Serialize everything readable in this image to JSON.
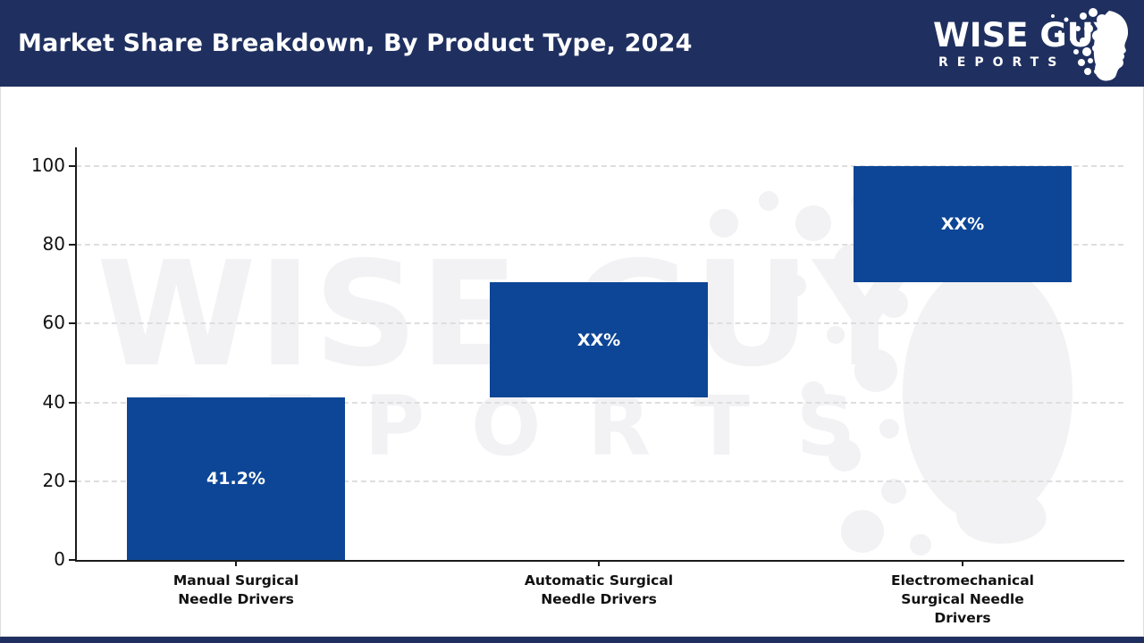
{
  "header": {
    "title": "Market Share Breakdown, By Product Type, 2024",
    "bg_color": "#1f3060",
    "logo": {
      "line1": "WISE GUY",
      "line2": "REPORTS"
    }
  },
  "watermark": {
    "line1": "WISE GUY",
    "line2": "REPORTS"
  },
  "chart_data": {
    "type": "bar",
    "subtype": "stepped-stacked-waterfall",
    "title": "Market Share Breakdown, By Product Type, 2024",
    "categories": [
      [
        "Manual Surgical",
        "Needle Drivers"
      ],
      [
        "Automatic Surgical",
        "Needle Drivers"
      ],
      [
        "Electromechanical",
        "Surgical Needle",
        "Drivers"
      ]
    ],
    "segments": [
      {
        "category": "Manual Surgical Needle Drivers",
        "start": 0,
        "end": 41.2,
        "label": "41.2%"
      },
      {
        "category": "Automatic Surgical Needle Drivers",
        "start": 41.2,
        "end": 70.5,
        "label": "XX%"
      },
      {
        "category": "Electromechanical Surgical Needle Drivers",
        "start": 70.5,
        "end": 100,
        "label": "XX%"
      }
    ],
    "yticks": [
      0,
      20,
      40,
      60,
      80,
      100
    ],
    "ylim": [
      0,
      104.7
    ],
    "grid": "horizontal dashed",
    "legend": "none",
    "bar_color": "#0d4696",
    "bar_label_color": "#ffffff",
    "axis_color": "#1a1a1a"
  }
}
